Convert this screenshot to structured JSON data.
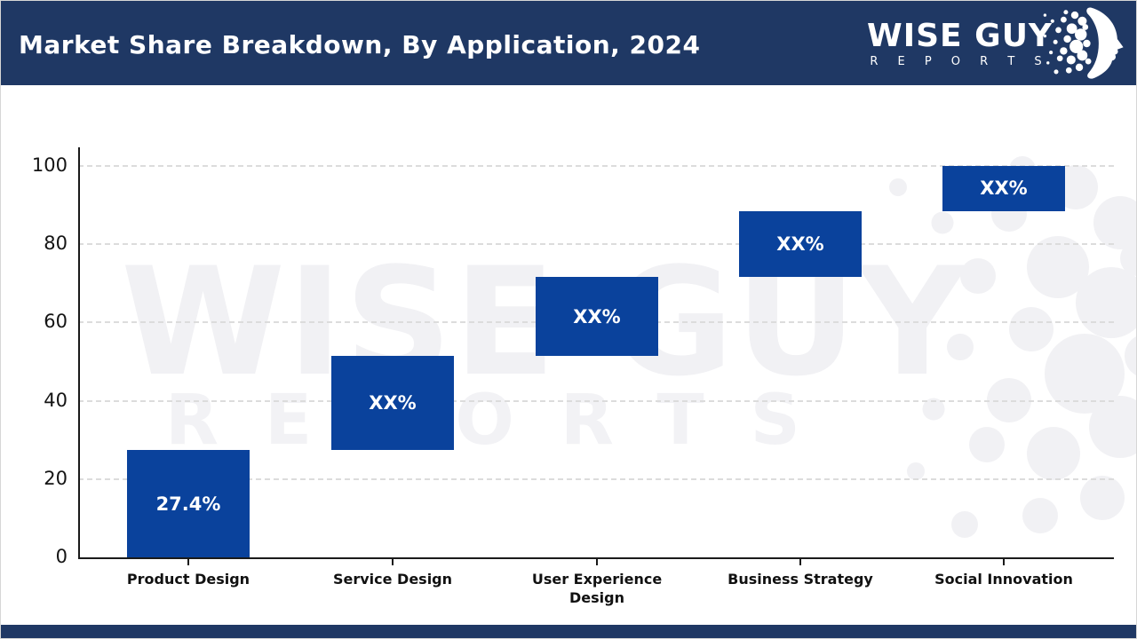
{
  "header": {
    "title": "Market Share Breakdown, By Application, 2024",
    "logo": {
      "line1": "WISE GUY",
      "line2": "R E P O R T S"
    }
  },
  "watermark": {
    "line1": "WISE GUY",
    "line2": "REPORTS"
  },
  "colors": {
    "header_navy": "#1f3864",
    "bar_blue": "#0a429c",
    "gridline_gray": "#dcdcdc",
    "watermark_gray": "#f1f1f4",
    "text_black": "#111111",
    "white": "#ffffff"
  },
  "chart_data": {
    "type": "bar",
    "subtype": "waterfall",
    "title": "Market Share Breakdown, By Application, 2024",
    "xlabel": "",
    "ylabel": "",
    "ylim": [
      0,
      100
    ],
    "yticks": [
      0,
      20,
      40,
      60,
      80,
      100
    ],
    "grid": true,
    "legend": false,
    "categories": [
      "Product Design",
      "Service Design",
      "User Experience Design",
      "Business Strategy",
      "Social Innovation"
    ],
    "segments": [
      {
        "category": "Product Design",
        "start": 0,
        "end": 27.4,
        "label": "27.4%"
      },
      {
        "category": "Service Design",
        "start": 27.4,
        "end": 51.4,
        "label": "XX%"
      },
      {
        "category": "User Experience Design",
        "start": 51.4,
        "end": 71.6,
        "label": "XX%"
      },
      {
        "category": "Business Strategy",
        "start": 71.6,
        "end": 88.5,
        "label": "XX%"
      },
      {
        "category": "Social Innovation",
        "start": 88.5,
        "end": 100,
        "label": "XX%"
      }
    ]
  }
}
